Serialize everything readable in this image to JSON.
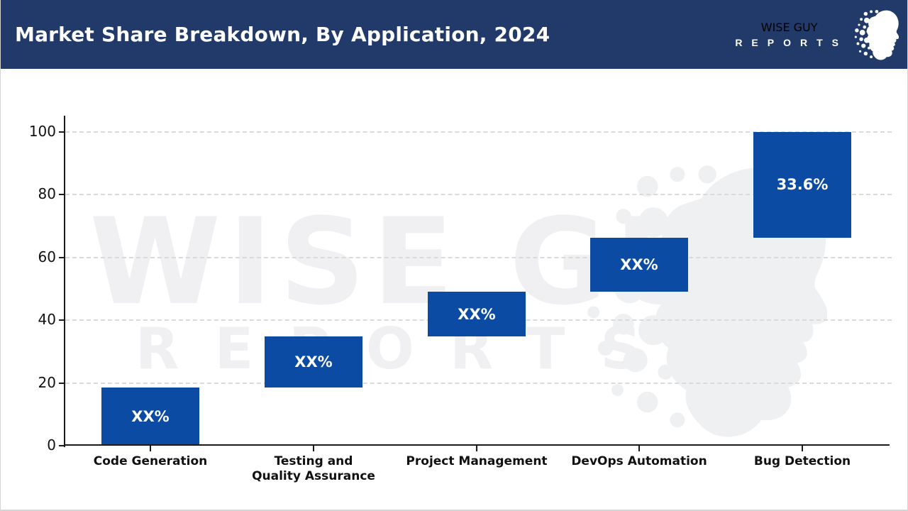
{
  "header": {
    "title": "Market Share Breakdown, By Application, 2024",
    "logo_line1": "WISE GUY",
    "logo_line2": "REPORTS",
    "bg_color": "#213a69"
  },
  "watermark": {
    "line1": "WISE GUY",
    "line2": "REPORTS"
  },
  "chart_data": {
    "type": "bar",
    "subtype": "waterfall",
    "title": "Market Share Breakdown, By Application, 2024",
    "categories": [
      "Code Generation",
      "Testing and\nQuality Assurance",
      "Project Management",
      "DevOps Automation",
      "Bug Detection"
    ],
    "segments": [
      {
        "category": "Code Generation",
        "start": 0,
        "end": 18.6,
        "value": 18.6,
        "label": "XX%"
      },
      {
        "category": "Testing and\nQuality Assurance",
        "start": 18.6,
        "end": 34.9,
        "value": 16.3,
        "label": "XX%"
      },
      {
        "category": "Project Management",
        "start": 34.9,
        "end": 49.0,
        "value": 14.1,
        "label": "XX%"
      },
      {
        "category": "DevOps Automation",
        "start": 49.0,
        "end": 66.4,
        "value": 17.4,
        "label": "XX%"
      },
      {
        "category": "Bug Detection",
        "start": 66.4,
        "end": 100.0,
        "value": 33.6,
        "label": "33.6%"
      }
    ],
    "yticks": [
      0,
      20,
      40,
      60,
      80,
      100
    ],
    "ylim": [
      0,
      105
    ],
    "xlabel": "",
    "ylabel": "",
    "grid": "horizontal-dashed",
    "legend": "none",
    "bar_color": "#0b4ba3",
    "bar_label_color": "#ffffff",
    "axis_color": "#1a1a1a"
  }
}
